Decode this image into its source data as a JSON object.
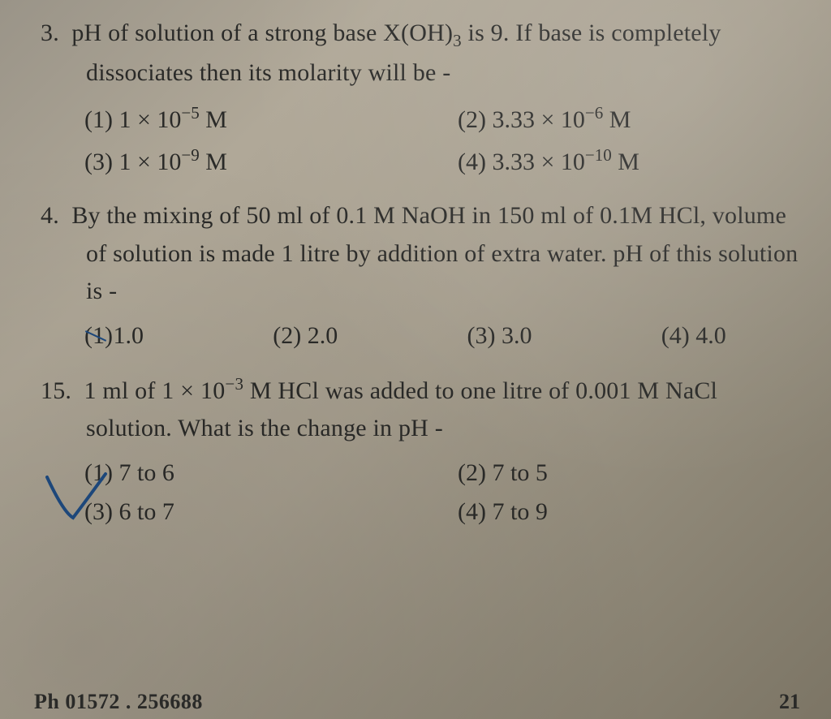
{
  "colors": {
    "text": "#2a2a28",
    "ink_blue": "#1d477a",
    "paper_light": "#b0a898",
    "paper_dark": "#7c7565"
  },
  "typography": {
    "body_fontsize_pt": 22,
    "font_family": "Georgia, Times New Roman, serif"
  },
  "q3": {
    "number": "3.",
    "text_html": "pH of solution of a strong base X(OH)<sub>3</sub> is 9. If base is completely dissociates then its molarity will be -",
    "options": {
      "o1": "(1) 1 × 10<sup>−5</sup> M",
      "o2": "(2) 3.33 × 10<sup>−6</sup> M",
      "o3": "(3) 1 × 10<sup>−9</sup> M",
      "o4": "(4) 3.33 × 10<sup>−10</sup> M"
    }
  },
  "q4": {
    "number": "4.",
    "text_html": "By the mixing of 50 ml of 0.1 M NaOH in 150 ml of 0.1M HCl, volume of solution is made 1 litre by addition of extra water. pH of this solution is -",
    "options": {
      "o1": "(1) 1.0",
      "o2": "(2) 2.0",
      "o3": "(3) 3.0",
      "o4": "(4) 4.0"
    }
  },
  "q15": {
    "number": "15.",
    "text_html": "1 ml of 1 × 10<sup>−3</sup> M HCl was added to one litre of 0.001 M NaCl solution. What is the change in pH -",
    "options": {
      "o1": "(1) 7 to 6",
      "o2": "(2) 7 to 5",
      "o3": "(3) 6 to 7",
      "o4": "(4) 7 to 9"
    }
  },
  "footer": {
    "phone_partial": "Ph  01572 . 256688",
    "page_partial": "21"
  }
}
